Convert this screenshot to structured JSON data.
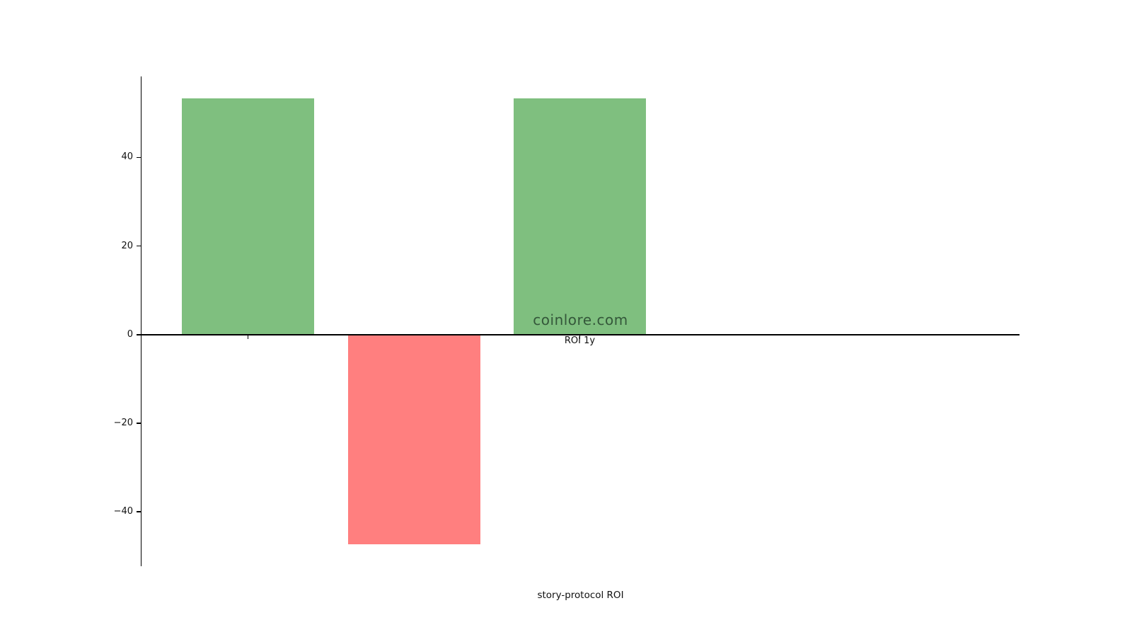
{
  "chart_data": {
    "type": "bar",
    "title": "",
    "xlabel": "story-protocol ROI",
    "ylabel": "",
    "watermark": "coinlore.com",
    "categories": [
      "",
      "",
      "ROI 1y"
    ],
    "values": [
      53.3,
      -47.3,
      53.3
    ],
    "bar_colors": [
      "#7fbf7f",
      "#ff7f7f",
      "#7fbf7f"
    ],
    "positive_color": "#7fbf7f",
    "negative_color": "#ff7f7f",
    "ylim": [
      -52.3,
      58.3
    ],
    "yticks": [
      {
        "value": 40,
        "label": "40"
      },
      {
        "value": 20,
        "label": "20"
      },
      {
        "value": 0,
        "label": "0"
      },
      {
        "value": -20,
        "label": "−20"
      },
      {
        "value": -40,
        "label": "−40"
      }
    ],
    "grid": false,
    "legend": "none",
    "background": "#ffffff",
    "axis_color": "#000000",
    "text_color": "#111111",
    "watermark_color": "#34573a"
  }
}
